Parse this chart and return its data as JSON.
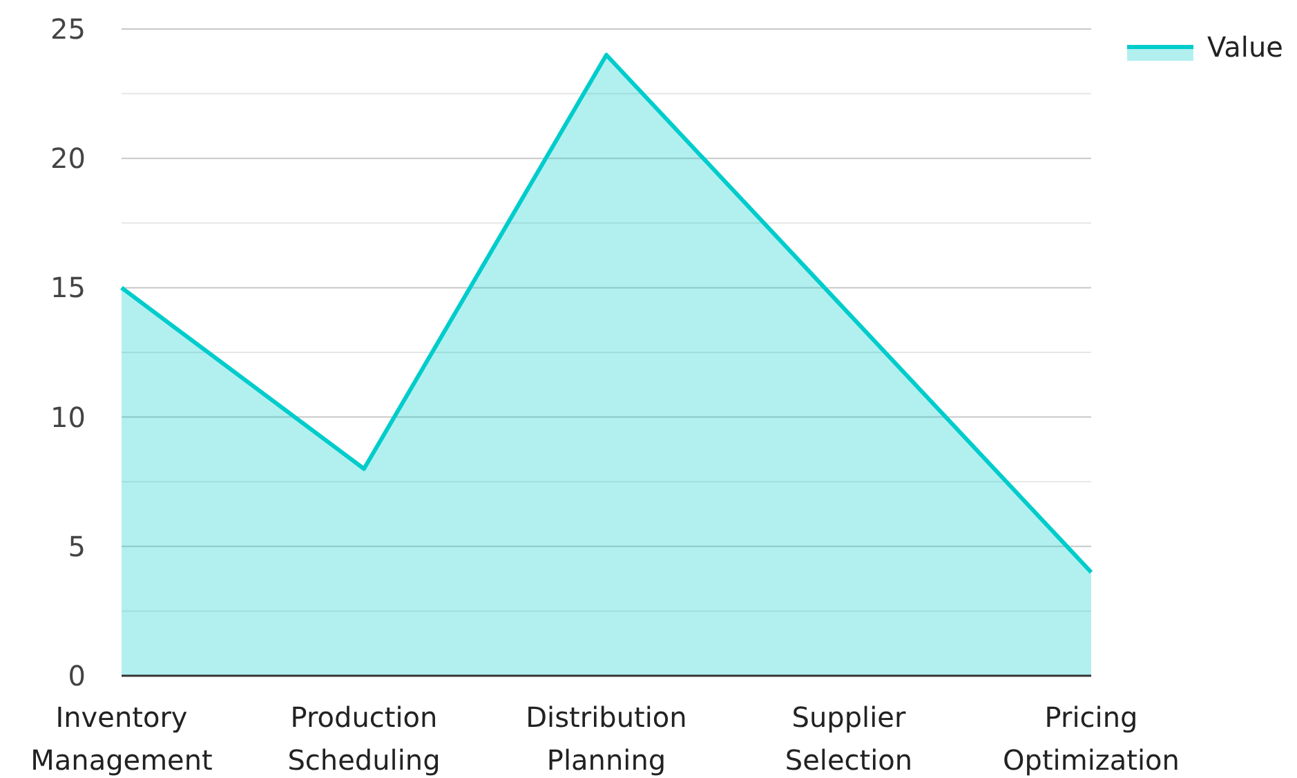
{
  "chart_data": {
    "type": "area",
    "categories": [
      "Inventory Management",
      "Production Scheduling",
      "Distribution Planning",
      "Supplier Selection",
      "Pricing Optimization"
    ],
    "series": [
      {
        "name": "Value",
        "color": "#00cccc",
        "values": [
          15,
          8,
          24,
          14,
          4
        ]
      }
    ],
    "ylim": [
      0,
      25
    ],
    "yticks": [
      0,
      {
        "value": 2.5,
        "label": null
      },
      5,
      {
        "value": 7.5,
        "label": null
      },
      10,
      {
        "value": 12.5,
        "label": null
      },
      15,
      {
        "value": 17.5,
        "label": null
      },
      20,
      {
        "value": 22.5,
        "label": null
      },
      25
    ],
    "grid": "y",
    "legend": "top right"
  }
}
